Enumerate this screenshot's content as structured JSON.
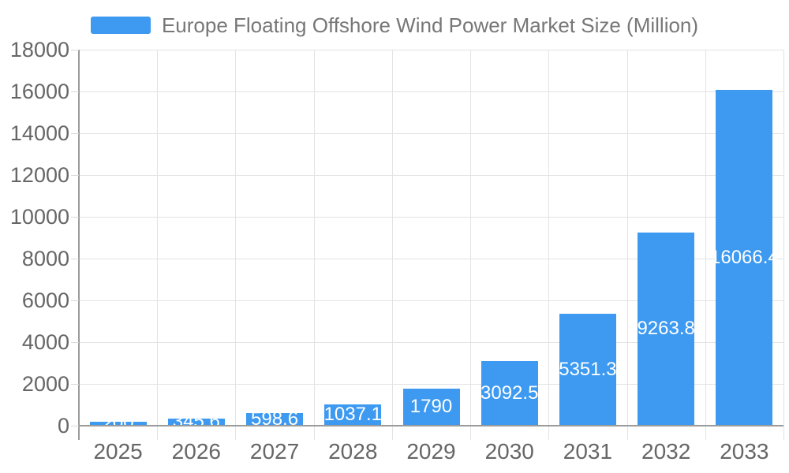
{
  "legend": {
    "label": "Europe Floating Offshore Wind Power Market Size (Million)"
  },
  "chart_data": {
    "type": "bar",
    "title": "Europe Floating Offshore Wind Power Market Size (Million)",
    "categories": [
      "2025",
      "2026",
      "2027",
      "2028",
      "2029",
      "2030",
      "2031",
      "2032",
      "2033"
    ],
    "values": [
      200,
      345.6,
      598.6,
      1037.1,
      1790,
      3092.5,
      5351.3,
      9263.8,
      16066.4
    ],
    "value_labels": [
      "200",
      "345.6",
      "598.6",
      "1037.1",
      "1790",
      "3092.5",
      "5351.3",
      "9263.8",
      "16066.4"
    ],
    "xlabel": "",
    "ylabel": "",
    "ylim": [
      0,
      18000
    ],
    "ytick_step": 2000,
    "ytick_labels": [
      "0",
      "2000",
      "4000",
      "6000",
      "8000",
      "10000",
      "12000",
      "14000",
      "16000",
      "18000"
    ],
    "legend_position": "top-center",
    "grid": true,
    "value_label_position": "inside-center"
  },
  "colors": {
    "bar": "#3D9AF0",
    "value_label": "#ffffff",
    "grid": "#e3e3e3",
    "axis": "#9b9b9b",
    "tick": "#d9d9d9",
    "tick_label": "#666666",
    "legend_text": "#777777",
    "background": "#ffffff"
  }
}
